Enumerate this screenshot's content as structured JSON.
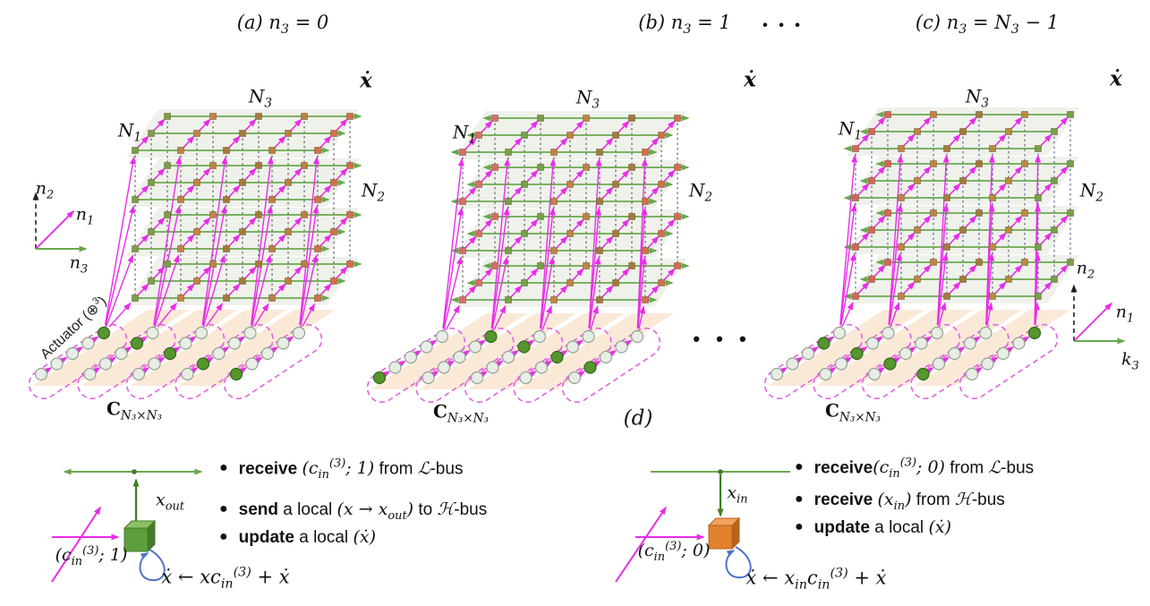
{
  "captions": {
    "a": "(a) n<sub>3</sub> = 0",
    "b": "(b) n<sub>3</sub> = 1",
    "c": "(c) n<sub>3</sub> = N<sub>3</sub> − 1",
    "d": "(d)",
    "ellipsis_top": "• • •",
    "ellipsis_mid": "• • •"
  },
  "panels": [
    {
      "id": "a",
      "n1_label": "N<sub>1</sub>",
      "n3_label": "N<sub>3</sub>",
      "n2_label": "N<sub>2</sub>",
      "state_label": "ẋ",
      "matrix_label": "<span class='bfup'>C</span><sub>N₃×N₃</sub>",
      "green_arrow_dir": "right",
      "green_circle_index_per_chain": [
        4,
        3,
        2,
        1,
        0
      ],
      "node_colors": [
        "#76a04a",
        "#c28247",
        "#a5793d",
        "#bd7f42",
        "#da6a4e"
      ],
      "dash_color": "#4a4a4a"
    },
    {
      "id": "b",
      "n1_label": "N<sub>1</sub>",
      "n3_label": "N<sub>3</sub>",
      "n2_label": "N<sub>2</sub>",
      "state_label": "ẋ",
      "matrix_label": "<span class='bfup'>C</span><sub>N₃×N₃</sub>",
      "green_arrow_dir": "both",
      "green_circle_index_per_chain": [
        0,
        4,
        3,
        2,
        1
      ],
      "node_colors": [
        "#dc6b6b",
        "#76a04a",
        "#c28247",
        "#a5793d",
        "#d96a4e"
      ],
      "dash_color": "#4a4a4a"
    },
    {
      "id": "c",
      "n1_label": "N<sub>1</sub>",
      "n3_label": "N<sub>3</sub>",
      "n2_label": "N<sub>2</sub>",
      "state_label": "ẋ",
      "matrix_label": "<span class='bfup'>C</span><sub>N₃×N₃</sub>",
      "green_arrow_dir": "left",
      "green_circle_index_per_chain": [
        3,
        2,
        1,
        0,
        4
      ],
      "node_colors": [
        "#dc605c",
        "#c28247",
        "#a5793d",
        "#b98a45",
        "#76a04a"
      ],
      "dash_color": "#44517d"
    }
  ],
  "axes_left": {
    "up": "n<sub>2</sub>",
    "diag": "n<sub>1</sub>",
    "right": "n<sub>3</sub>"
  },
  "axes_right": {
    "up": "n<sub>2</sub>",
    "diag": "n<sub>1</sub>",
    "right": "k<sub>3</sub>"
  },
  "actuator_label": "Actuator (⊕<sup>3</sup>)",
  "legend_left": {
    "io_label": "x<sub>out</sub>",
    "coeff_label": "(c<sub>in</sub><sup>(3)</sup>; 1)",
    "formula": "ẋ ← xc<sub>in</sub><sup>(3)</sup> + ẋ",
    "cube": "green",
    "bullets": [
      "<b>receive</b> <span class='m'>(c<sub>in</sub><sup>(3)</sup>; 1)</span> from <span class='m'>ℒ</span>-bus",
      "<b>send</b> a local <span class='m'>(x → x<sub>out</sub>)</span> to <span class='m'>ℋ</span>-bus",
      "<b>update</b> a local <span class='m'>(ẋ)</span>"
    ]
  },
  "legend_right": {
    "io_label": "x<sub>in</sub>",
    "coeff_label": "(c<sub>in</sub><sup>(3)</sup>; 0)",
    "formula": "ẋ ← x<sub>in</sub>c<sub>in</sub><sup>(3)</sup> + ẋ",
    "cube": "orange",
    "bullets": [
      "<b>receive</b><span class='m'>(c<sub>in</sub><sup>(3)</sup>; 0)</span> from <span class='m'>ℒ</span>-bus",
      "<b>receive</b> <span class='m'>(x<sub>in</sub>)</span> from <span class='m'>ℋ</span>-bus",
      "<b>update</b> a local <span class='m'>(ẋ)</span>"
    ]
  },
  "colors": {
    "magenta": "#e92ce9",
    "magenta_dash": "#e063e0",
    "green": "#6aa84f",
    "dark_green": "#3e7d20",
    "black": "#222222",
    "slab": "#edf0e9",
    "peach": "#fbe9d8",
    "chain_fill": "#e8ede5",
    "chain_stroke": "#93a393",
    "chain_green": "#55962e",
    "chain_green_stroke": "#35691a",
    "blue": "#4e74c8",
    "node_stroke": "#6b5a2c",
    "cube_green": {
      "top": "#8cc063",
      "front": "#5f9e3d",
      "side": "#447a28"
    },
    "cube_orange": {
      "top": "#f0a45c",
      "front": "#e2822f",
      "side": "#b5621d"
    }
  }
}
